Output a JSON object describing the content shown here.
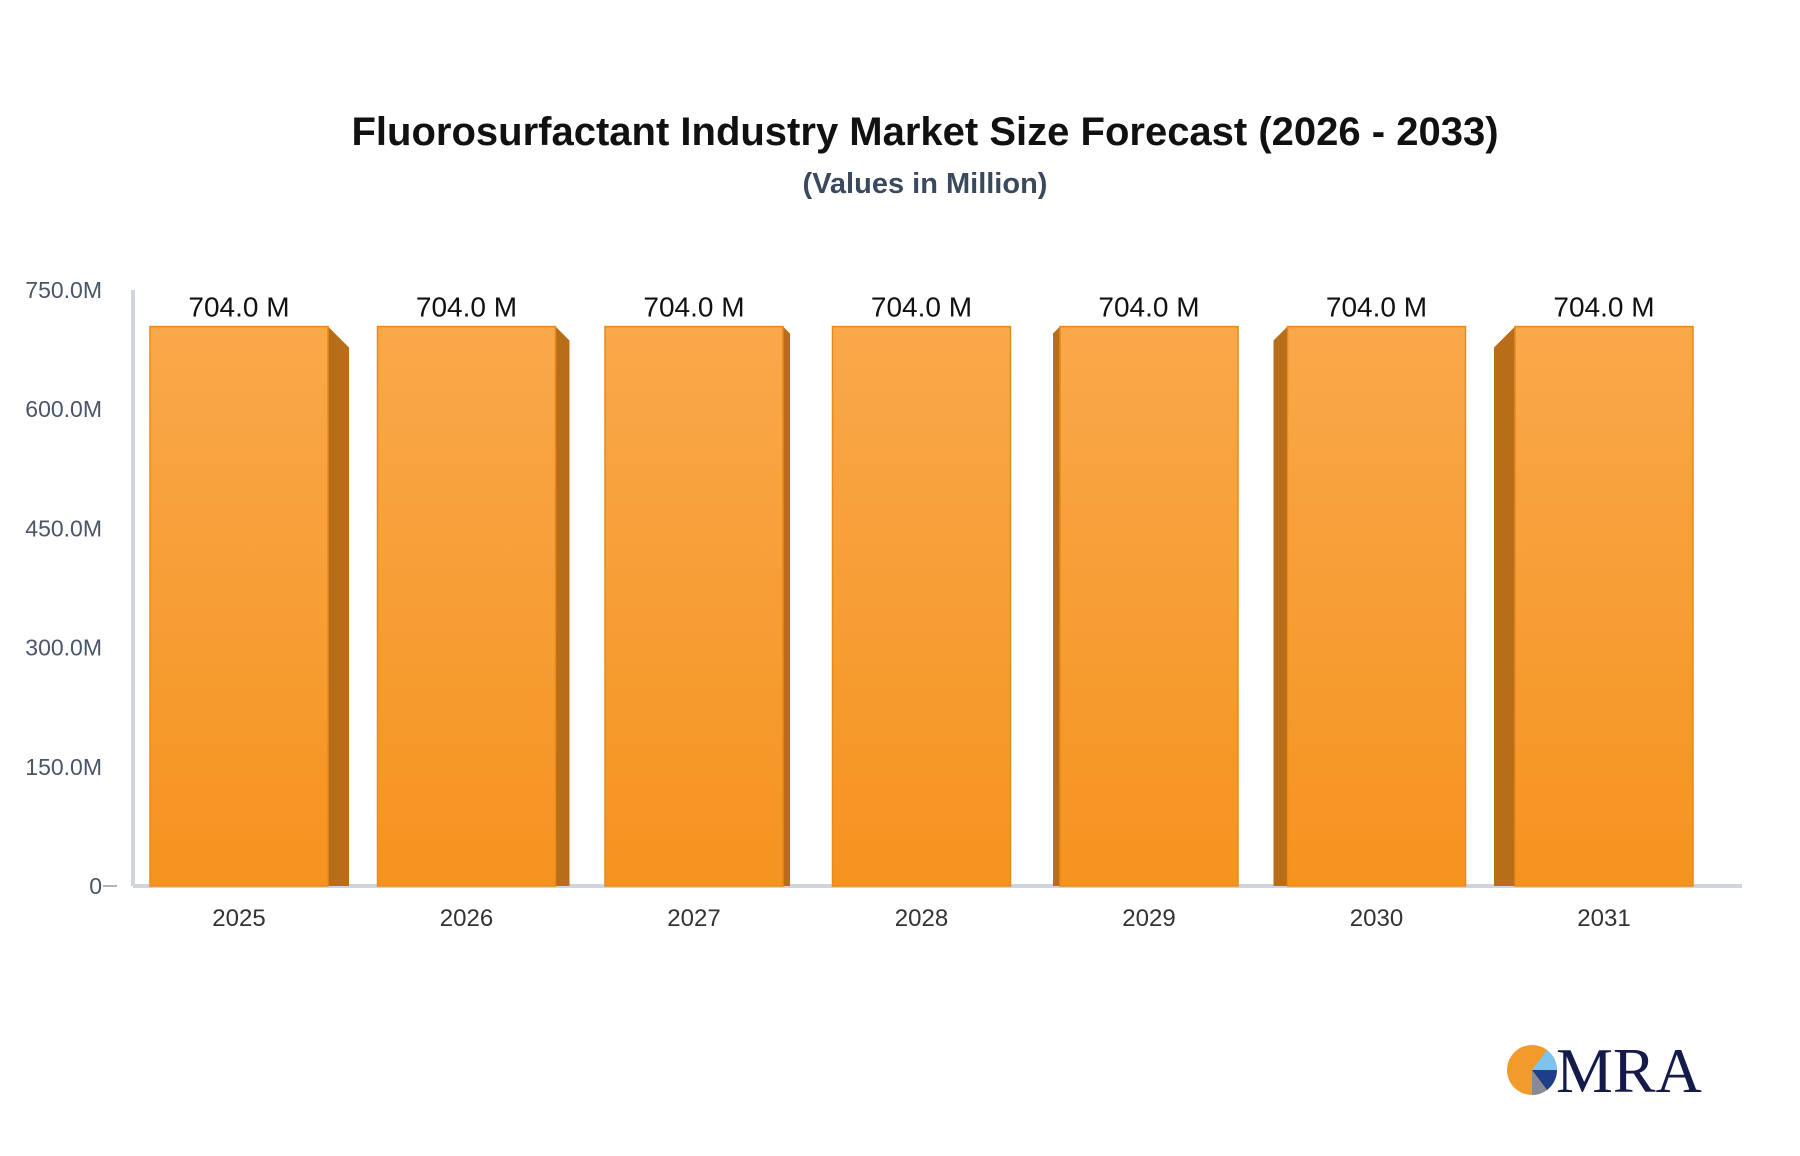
{
  "chart_data": {
    "type": "bar",
    "title": "Fluorosurfactant Industry Market Size Forecast (2026 - 2033)",
    "subtitle": "(Values in Million)",
    "categories": [
      "2025",
      "2026",
      "2027",
      "2028",
      "2029",
      "2030",
      "2031"
    ],
    "values": [
      704.0,
      704.0,
      704.0,
      704.0,
      704.0,
      704.0,
      704.0
    ],
    "data_labels": [
      "704.0 M",
      "704.0 M",
      "704.0 M",
      "704.0 M",
      "704.0 M",
      "704.0 M",
      "704.0 M"
    ],
    "ylim": [
      0,
      750
    ],
    "yticks": [
      0,
      150,
      300,
      450,
      600,
      750
    ],
    "ytick_labels": [
      "0",
      "150.0M",
      "300.0M",
      "450.0M",
      "600.0M",
      "750.0M"
    ],
    "grid": false,
    "colors": {
      "bar_top": "#f9a84a",
      "bar_bottom": "#f5931f",
      "bar_side": "#b86d18",
      "axis": "#d0d4dc"
    }
  },
  "logo": {
    "text": "MRA"
  }
}
